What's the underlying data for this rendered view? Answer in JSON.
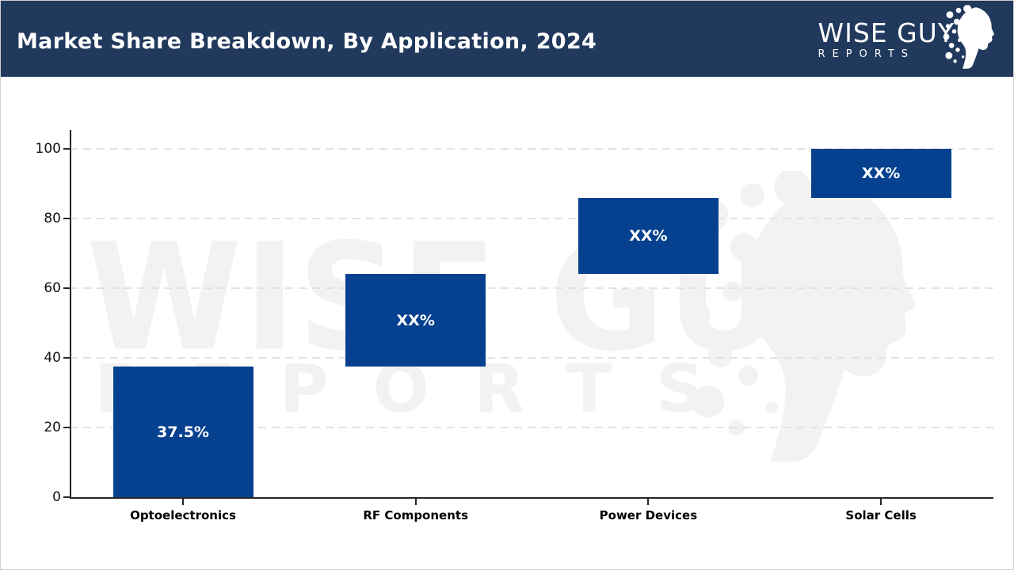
{
  "header": {
    "title": "Market Share Breakdown, By Application, 2024",
    "logo": {
      "line1": "WISE GUY",
      "line2": "REPORTS"
    }
  },
  "watermark": {
    "line1": "WISE GUY",
    "line2": "REPORTS"
  },
  "chart_data": {
    "type": "bar",
    "subtype": "waterfall",
    "title": "Market Share Breakdown, By Application, 2024",
    "categories": [
      "Optoelectronics",
      "RF Components",
      "Power Devices",
      "Solar Cells"
    ],
    "series": [
      {
        "name": "Market share by application",
        "segments": [
          {
            "category": "Optoelectronics",
            "start": 0,
            "end": 37.5,
            "label": "37.5%"
          },
          {
            "category": "RF Components",
            "start": 37.5,
            "end": 64,
            "label": "XX%"
          },
          {
            "category": "Power Devices",
            "start": 64,
            "end": 86,
            "label": "XX%"
          },
          {
            "category": "Solar Cells",
            "start": 86,
            "end": 100,
            "label": "XX%"
          }
        ]
      }
    ],
    "xlabel": "",
    "ylabel": "",
    "y_ticks": [
      "0",
      "20",
      "40",
      "60",
      "80",
      "100"
    ],
    "y_tick_values": [
      0,
      20,
      40,
      60,
      80,
      100
    ],
    "ylim": [
      0,
      105
    ],
    "grid": "horizontal-dashed",
    "legend_position": "none",
    "colors": {
      "bar": "#05418F",
      "bar_label": "#FFFFFF",
      "grid": "#E2E2E2",
      "axis": "#262626",
      "header_bg": "#21395C",
      "header_text": "#FFFFFF",
      "watermark": "#F2F2F2"
    }
  }
}
